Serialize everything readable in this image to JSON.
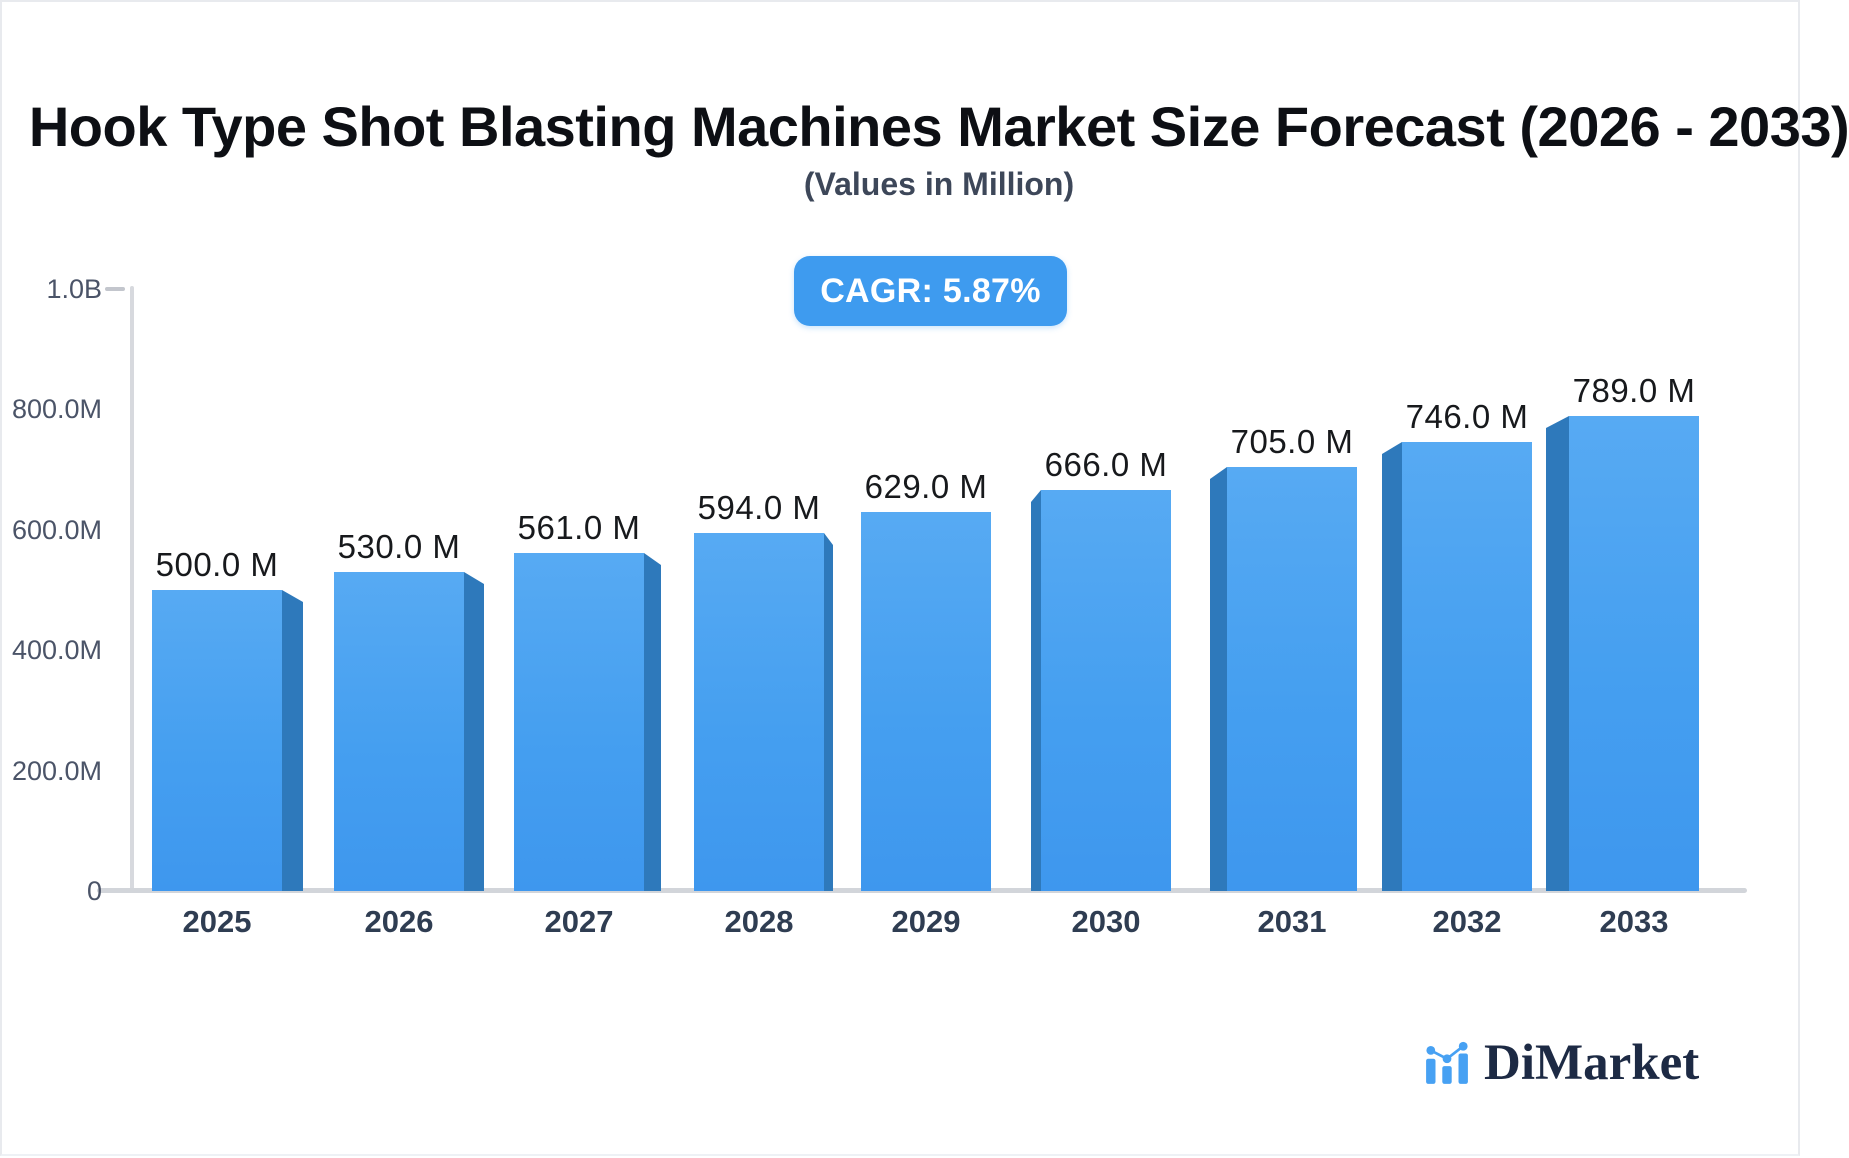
{
  "header": {
    "title": "Hook Type Shot Blasting Machines Market Size Forecast (2026 - 2033)",
    "subtitle": "(Values in Million)",
    "cagr_badge": "CAGR: 5.87%"
  },
  "chart_data": {
    "type": "bar",
    "title": "Hook Type Shot Blasting Machines Market Size Forecast (2026 - 2033)",
    "subtitle": "(Values in Million)",
    "categories": [
      "2025",
      "2026",
      "2027",
      "2028",
      "2029",
      "2030",
      "2031",
      "2032",
      "2033"
    ],
    "values": [
      500,
      530,
      561,
      594,
      629,
      666,
      705,
      746,
      789
    ],
    "value_labels": [
      "500.0 M",
      "530.0 M",
      "561.0 M",
      "594.0 M",
      "629.0 M",
      "666.0 M",
      "705.0 M",
      "746.0 M",
      "789.0 M"
    ],
    "value_unit": "Million",
    "ylim": [
      0,
      1000
    ],
    "y_ticks": [
      {
        "value": 0,
        "label": "0",
        "dash": true
      },
      {
        "value": 200,
        "label": "200.0M",
        "dash": false
      },
      {
        "value": 400,
        "label": "400.0M",
        "dash": false
      },
      {
        "value": 600,
        "label": "600.0M",
        "dash": false
      },
      {
        "value": 800,
        "label": "800.0M",
        "dash": false
      },
      {
        "value": 1000,
        "label": "1.0B",
        "dash": true
      }
    ],
    "grid": false,
    "legend": false,
    "style": "3d-extruded-bars",
    "colors": {
      "bar_face_top": "#57aaf3",
      "bar_face_bottom": "#3e97ee",
      "bar_side": "#2e79bb",
      "axis_line": "#d5d7dc",
      "badge": "#3e9bef",
      "logo_blue": "#47a1f3",
      "logo_navy": "#1d2a44"
    }
  },
  "branding": {
    "logo_text": "DiMarket",
    "logo_icon": "mini-bar-chart-with-dots-icon"
  }
}
